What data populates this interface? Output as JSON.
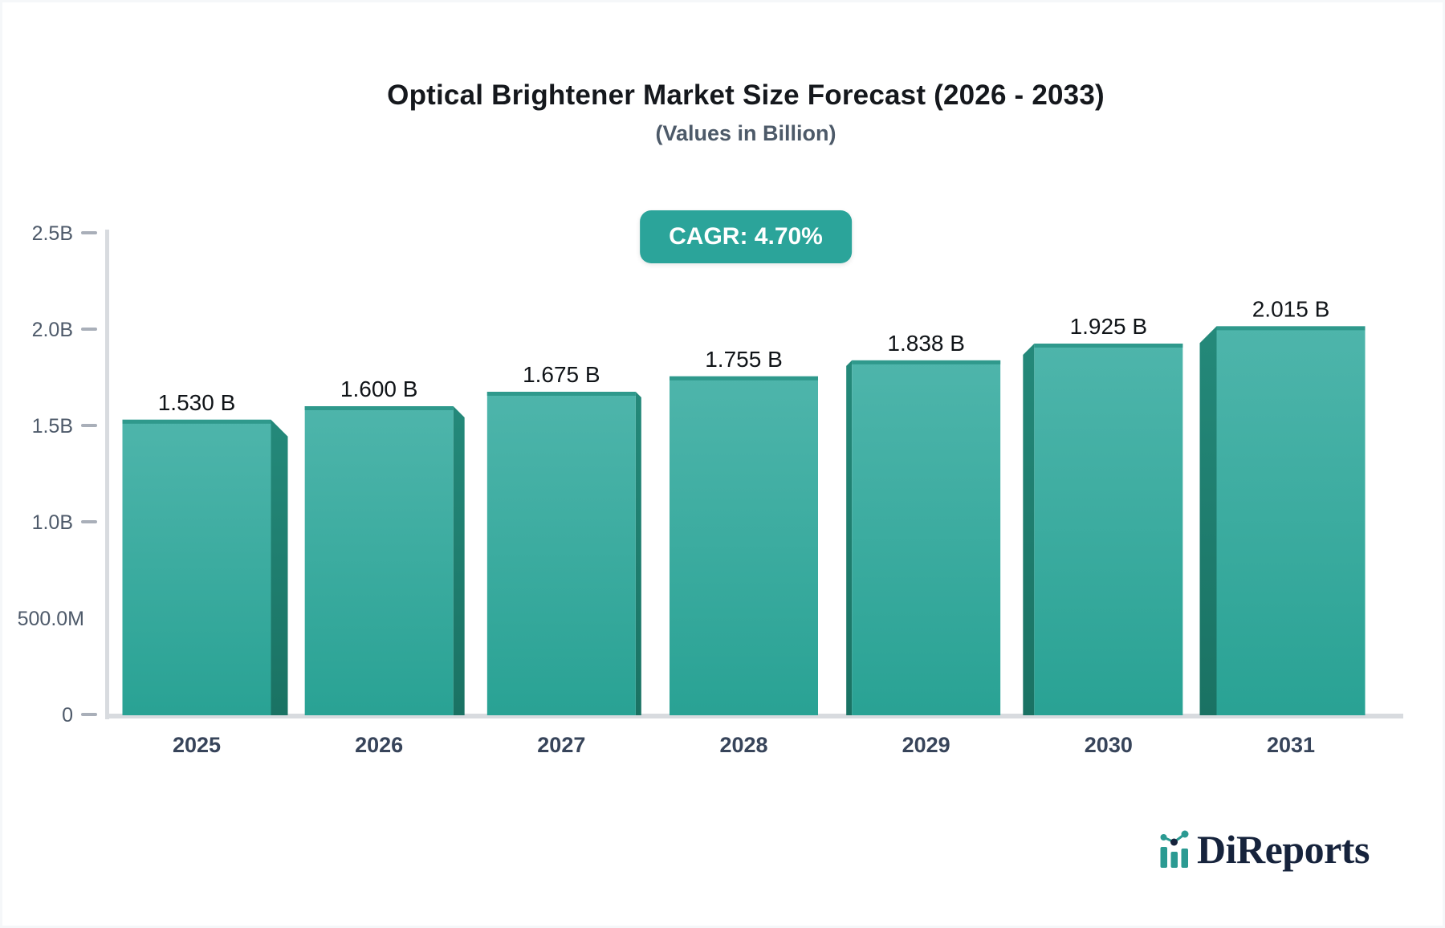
{
  "header": {
    "title": "Optical Brightener Market Size Forecast (2026 - 2033)",
    "subtitle": "(Values in Billion)"
  },
  "badge": {
    "label": "CAGR: 4.70%",
    "bg": "#2ba49a",
    "text_color": "#ffffff"
  },
  "chart_data": {
    "type": "bar",
    "title": "Optical Brightener Market Size Forecast (2026 - 2033)",
    "subtitle": "(Values in Billion)",
    "categories": [
      "2025",
      "2026",
      "2027",
      "2028",
      "2029",
      "2030",
      "2031"
    ],
    "values": [
      1.53,
      1.6,
      1.675,
      1.755,
      1.838,
      1.925,
      2.015
    ],
    "value_labels": [
      "1.530 B",
      "1.600 B",
      "1.675 B",
      "1.755 B",
      "1.838 B",
      "1.925 B",
      "2.015 B"
    ],
    "unit": "Billion",
    "xlabel": "",
    "ylabel": "",
    "ylim": [
      0,
      2.5
    ],
    "grid": false,
    "legend": false,
    "yticks": [
      {
        "value": 2.5,
        "label": "2.5B",
        "tick": true
      },
      {
        "value": 2.0,
        "label": "2.0B",
        "tick": true
      },
      {
        "value": 1.5,
        "label": "1.5B",
        "tick": true
      },
      {
        "value": 1.0,
        "label": "1.0B",
        "tick": true
      },
      {
        "value": 0.5,
        "label": "500.0M",
        "tick": false
      },
      {
        "value": 0.0,
        "label": "0",
        "tick": true
      }
    ],
    "colors": {
      "bar_face_top": "#4eb5ab",
      "bar_face_bottom": "#29a294",
      "bar_side_top": "#24897a",
      "bar_side_bottom": "#1a7263",
      "bar_top_edge": "#2f998c",
      "axis_line": "#d8dbdf",
      "tick": "#a9afb9",
      "y_label": "#4e5a6a",
      "x_label": "#37445a",
      "data_label": "#101418"
    }
  },
  "logo": {
    "text": "DiReports",
    "icon": "direports-logo-icon",
    "text_color": "#16233c",
    "accent": "#2b9a92",
    "dot_color": "#16233c"
  }
}
